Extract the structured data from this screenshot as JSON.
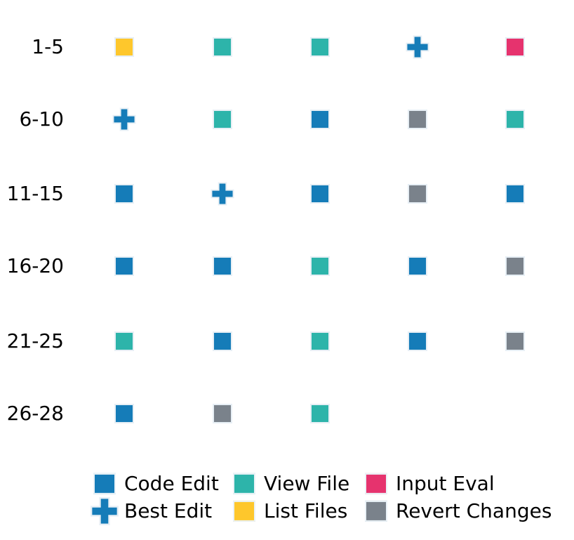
{
  "chart_data": {
    "type": "scatter",
    "title": "",
    "description": "Grid of categorical action markers: rows group sequential steps 1-28 into bins of five; each marker shows the action type taken at that step.",
    "y_categories": [
      "1-5",
      "6-10",
      "11-15",
      "16-20",
      "21-25",
      "26-28"
    ],
    "x_positions": [
      1,
      2,
      3,
      4,
      5
    ],
    "rows": [
      {
        "label": "1-5",
        "actions": [
          "List Files",
          "View File",
          "View File",
          "Best Edit",
          "Input Eval"
        ]
      },
      {
        "label": "6-10",
        "actions": [
          "Best Edit",
          "View File",
          "Code Edit",
          "Revert Changes",
          "View File"
        ]
      },
      {
        "label": "11-15",
        "actions": [
          "Code Edit",
          "Best Edit",
          "Code Edit",
          "Revert Changes",
          "Code Edit"
        ]
      },
      {
        "label": "16-20",
        "actions": [
          "Code Edit",
          "Code Edit",
          "View File",
          "Code Edit",
          "Revert Changes"
        ]
      },
      {
        "label": "21-25",
        "actions": [
          "View File",
          "Code Edit",
          "View File",
          "Code Edit",
          "Revert Changes"
        ]
      },
      {
        "label": "26-28",
        "actions": [
          "Code Edit",
          "Revert Changes",
          "View File"
        ]
      }
    ],
    "legend": [
      {
        "label": "Code Edit",
        "marker": "square",
        "color": "#157cb8"
      },
      {
        "label": "View File",
        "marker": "square",
        "color": "#2db4aa"
      },
      {
        "label": "Input Eval",
        "marker": "square",
        "color": "#e6336e"
      },
      {
        "label": "Best Edit",
        "marker": "plus",
        "color": "#157cb8"
      },
      {
        "label": "List Files",
        "marker": "square",
        "color": "#fec72c"
      },
      {
        "label": "Revert Changes",
        "marker": "square",
        "color": "#7a828b"
      }
    ],
    "legend_position": "bottom",
    "background": "#ffffff",
    "marker_edge_color": "#e7eff5",
    "grid": false
  }
}
